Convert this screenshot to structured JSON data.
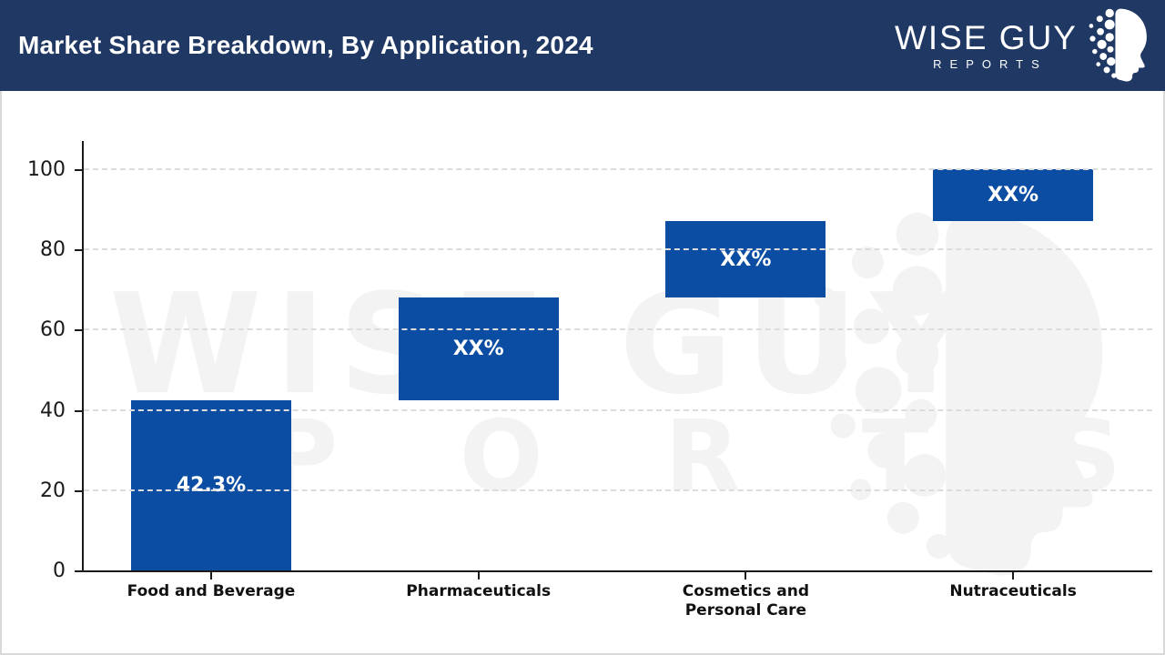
{
  "header": {
    "title": "Market Share Breakdown, By Application, 2024",
    "logo": {
      "line1": "WISE GUY",
      "line2": "REPORTS"
    }
  },
  "watermark": {
    "line1": "WISE GUY",
    "line2": "P O R T S"
  },
  "colors": {
    "header_bg": "#1f3864",
    "bar": "#0b4da2",
    "grid": "#dcdcdc",
    "axis": "#1a1a1a",
    "bar_label": "#ffffff",
    "watermark": "#f3f3f3",
    "card_border": "#d9d9d9"
  },
  "chart_data": {
    "type": "bar",
    "subtype": "floating-stacked-waterfall",
    "title": "Market Share Breakdown, By Application, 2024",
    "categories": [
      "Food and Beverage",
      "Pharmaceuticals",
      "Cosmetics and Personal Care",
      "Nutraceuticals"
    ],
    "bars": [
      {
        "category": "Food and Beverage",
        "start": 0,
        "end": 42.3,
        "label": "42.3%"
      },
      {
        "category": "Pharmaceuticals",
        "start": 42.3,
        "end": 68,
        "label": "XX%"
      },
      {
        "category": "Cosmetics and Personal Care",
        "start": 68,
        "end": 87,
        "label": "XX%"
      },
      {
        "category": "Nutraceuticals",
        "start": 87,
        "end": 100,
        "label": "XX%"
      }
    ],
    "ylim": [
      0,
      100
    ],
    "yticks": [
      0,
      20,
      40,
      60,
      80,
      100
    ],
    "xlabel": "",
    "ylabel": "",
    "grid": "horizontal-dashed",
    "legend": "none",
    "bar_color": "#0b4da2",
    "value_label_color": "#ffffff"
  }
}
